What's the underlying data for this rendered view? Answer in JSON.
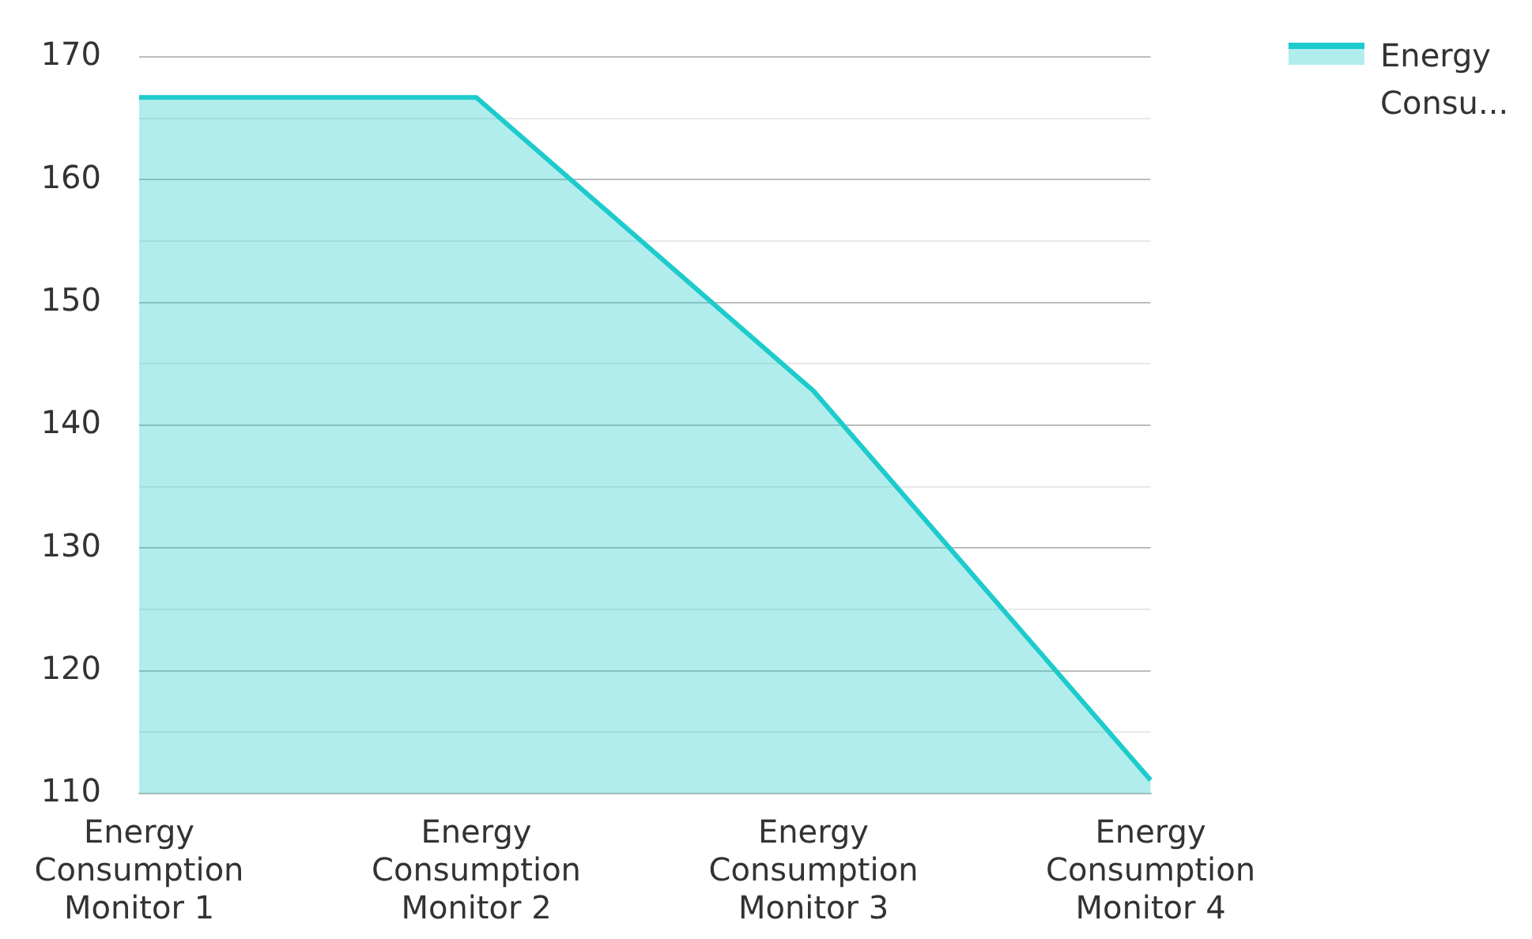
{
  "chart_data": {
    "type": "area",
    "categories": [
      "Energy Consumption Monitor 1",
      "Energy Consumption Monitor 2",
      "Energy Consumption Monitor 3",
      "Energy Consumption Monitor 4"
    ],
    "series": [
      {
        "name": "Energy Consu...",
        "color": "#1ecbcc",
        "values": [
          166.7,
          166.7,
          142.8,
          111.1
        ]
      }
    ],
    "ylim": [
      110,
      170
    ],
    "yticks": [
      110,
      {
        "value": 115,
        "label": null
      },
      120,
      {
        "value": 125,
        "label": null
      },
      130,
      {
        "value": 135,
        "label": null
      },
      140,
      {
        "value": 145,
        "label": null
      },
      150,
      {
        "value": 155,
        "label": null
      },
      160,
      {
        "value": 165,
        "label": null
      },
      170
    ],
    "grid": "y",
    "legend": "top right",
    "marker": "none"
  }
}
